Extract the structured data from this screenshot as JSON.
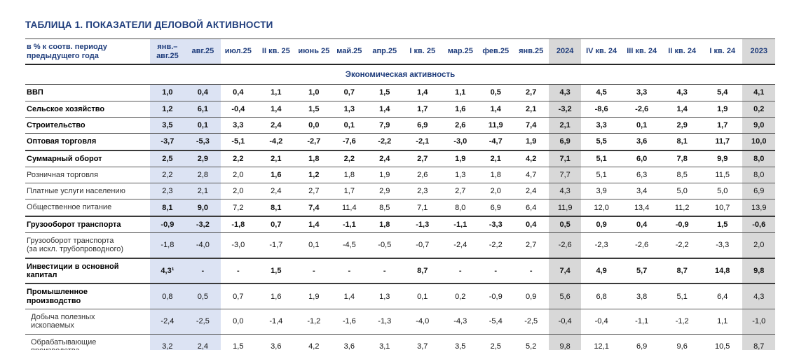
{
  "title": "ТАБЛИЦА 1. ПОКАЗАТЕЛИ ДЕЛОВОЙ АКТИВНОСТИ",
  "colors": {
    "accent_text": "#1f3d7c",
    "highlight_blue": "#dce3f3",
    "highlight_gray": "#d8d8d8"
  },
  "table": {
    "corner_label": "в % к соотв. периоду\nпредыдущего года",
    "section_label": "Экономическая активность",
    "columns": [
      {
        "label": "янв.–\nавг.25",
        "highlight": "blue"
      },
      {
        "label": "авг.25",
        "highlight": "blue"
      },
      {
        "label": "июл.25",
        "highlight": null
      },
      {
        "label": "II кв. 25",
        "highlight": null
      },
      {
        "label": "июнь 25",
        "highlight": null
      },
      {
        "label": "май.25",
        "highlight": null
      },
      {
        "label": "апр.25",
        "highlight": null
      },
      {
        "label": "I кв. 25",
        "highlight": null
      },
      {
        "label": "мар.25",
        "highlight": null
      },
      {
        "label": "фев.25",
        "highlight": null
      },
      {
        "label": "янв.25",
        "highlight": null
      },
      {
        "label": "2024",
        "highlight": "gray"
      },
      {
        "label": "IV кв. 24",
        "highlight": null
      },
      {
        "label": "III кв. 24",
        "highlight": null
      },
      {
        "label": "II кв. 24",
        "highlight": null
      },
      {
        "label": "I кв. 24",
        "highlight": null
      },
      {
        "label": "2023",
        "highlight": "gray"
      }
    ],
    "rows": [
      {
        "label": "ВВП",
        "bold_label": true,
        "bold_all": true,
        "rule": "normal",
        "values": [
          "1,0",
          "0,4",
          "0,4",
          "1,1",
          "1,0",
          "0,7",
          "1,5",
          "1,4",
          "1,1",
          "0,5",
          "2,7",
          "4,3",
          "4,5",
          "3,3",
          "4,3",
          "5,4",
          "4,1"
        ]
      },
      {
        "label": "Сельское хозяйство",
        "bold_label": true,
        "bold_all": true,
        "rule": "normal",
        "values": [
          "1,2",
          "6,1",
          "-0,4",
          "1,4",
          "1,5",
          "1,3",
          "1,4",
          "1,7",
          "1,6",
          "1,4",
          "2,1",
          "-3,2",
          "-8,6",
          "-2,6",
          "1,4",
          "1,9",
          "0,2"
        ]
      },
      {
        "label": "Строительство",
        "bold_label": true,
        "bold_all": true,
        "rule": "normal",
        "values": [
          "3,5",
          "0,1",
          "3,3",
          "2,4",
          "0,0",
          "0,1",
          "7,9",
          "6,9",
          "2,6",
          "11,9",
          "7,4",
          "2,1",
          "3,3",
          "0,1",
          "2,9",
          "1,7",
          "9,0"
        ]
      },
      {
        "label": "Оптовая торговля",
        "bold_label": true,
        "bold_all": true,
        "rule": "normal",
        "values": [
          "-3,7",
          "-5,3",
          "-5,1",
          "-4,2",
          "-2,7",
          "-7,6",
          "-2,2",
          "-2,1",
          "-3,0",
          "-4,7",
          "1,9",
          "6,9",
          "5,5",
          "3,6",
          "8,1",
          "11,7",
          "10,0"
        ]
      },
      {
        "label": "Суммарный оборот",
        "bold_label": true,
        "bold_all": true,
        "rule": "strong",
        "values": [
          "2,5",
          "2,9",
          "2,2",
          "2,1",
          "1,8",
          "2,2",
          "2,4",
          "2,7",
          "1,9",
          "2,1",
          "4,2",
          "7,1",
          "5,1",
          "6,0",
          "7,8",
          "9,9",
          "8,0"
        ]
      },
      {
        "label": "Розничная торговля",
        "bold_label": false,
        "bold_all": false,
        "bold_cells": [
          3,
          4
        ],
        "rule": "normal",
        "values": [
          "2,2",
          "2,8",
          "2,0",
          "1,6",
          "1,2",
          "1,8",
          "1,9",
          "2,6",
          "1,3",
          "1,8",
          "4,7",
          "7,7",
          "5,1",
          "6,3",
          "8,5",
          "11,5",
          "8,0"
        ]
      },
      {
        "label": "Платные услуги населению",
        "bold_label": false,
        "bold_all": false,
        "rule": "normal",
        "values": [
          "2,3",
          "2,1",
          "2,0",
          "2,4",
          "2,7",
          "1,7",
          "2,9",
          "2,3",
          "2,7",
          "2,0",
          "2,4",
          "4,3",
          "3,9",
          "3,4",
          "5,0",
          "5,0",
          "6,9"
        ]
      },
      {
        "label": "Общественное питание",
        "bold_label": false,
        "bold_all": false,
        "bold_cells": [
          0,
          1,
          3,
          4
        ],
        "rule": "normal",
        "values": [
          "8,1",
          "9,0",
          "7,2",
          "8,1",
          "7,4",
          "11,4",
          "8,5",
          "7,1",
          "8,0",
          "6,9",
          "6,4",
          "11,9",
          "12,0",
          "13,4",
          "11,2",
          "10,7",
          "13,9"
        ]
      },
      {
        "label": "Грузооборот транспорта",
        "bold_label": true,
        "bold_all": true,
        "rule": "strong",
        "values": [
          "-0,9",
          "-3,2",
          "-1,8",
          "0,7",
          "1,4",
          "-1,1",
          "1,8",
          "-1,3",
          "-1,1",
          "-3,3",
          "0,4",
          "0,5",
          "0,9",
          "0,4",
          "-0,9",
          "1,5",
          "-0,6"
        ]
      },
      {
        "label": "Грузооборот транспорта\n(за искл. трубопроводного)",
        "bold_label": false,
        "bold_all": false,
        "rule": "normal",
        "values": [
          "-1,8",
          "-4,0",
          "-3,0",
          "-1,7",
          "0,1",
          "-4,5",
          "-0,5",
          "-0,7",
          "-2,4",
          "-2,2",
          "2,7",
          "-2,6",
          "-2,3",
          "-2,6",
          "-2,2",
          "-3,3",
          "2,0"
        ]
      },
      {
        "label": "Инвестиции в основной\nкапитал",
        "bold_label": true,
        "bold_all": true,
        "rule": "strong",
        "values": [
          "4,3¹",
          "-",
          "-",
          "1,5",
          "-",
          "-",
          "-",
          "8,7",
          "-",
          "-",
          "-",
          "7,4",
          "4,9",
          "5,7",
          "8,7",
          "14,8",
          "9,8"
        ]
      },
      {
        "label": "Промышленное\nпроизводство",
        "bold_label": true,
        "bold_all": false,
        "rule": "strong",
        "values": [
          "0,8",
          "0,5",
          "0,7",
          "1,6",
          "1,9",
          "1,4",
          "1,3",
          "0,1",
          "0,2",
          "-0,9",
          "0,9",
          "5,6",
          "6,8",
          "3,8",
          "5,1",
          "6,4",
          "4,3"
        ]
      },
      {
        "label": "Добыча полезных\nископаемых",
        "bold_label": false,
        "bold_all": false,
        "indent": true,
        "rule": "normal",
        "values": [
          "-2,4",
          "-2,5",
          "0,0",
          "-1,4",
          "-1,2",
          "-1,6",
          "-1,3",
          "-4,0",
          "-4,3",
          "-5,4",
          "-2,5",
          "-0,4",
          "-0,4",
          "-1,1",
          "-1,2",
          "1,1",
          "-1,0"
        ]
      },
      {
        "label": "Обрабатывающие\nпроизводства",
        "bold_label": false,
        "bold_all": false,
        "indent": true,
        "rule": "normal",
        "values": [
          "3,2",
          "2,4",
          "1,5",
          "3,6",
          "4,2",
          "3,6",
          "3,1",
          "3,7",
          "3,5",
          "2,5",
          "5,2",
          "9,8",
          "12,1",
          "6,9",
          "9,6",
          "10,5",
          "8,7"
        ]
      }
    ]
  }
}
